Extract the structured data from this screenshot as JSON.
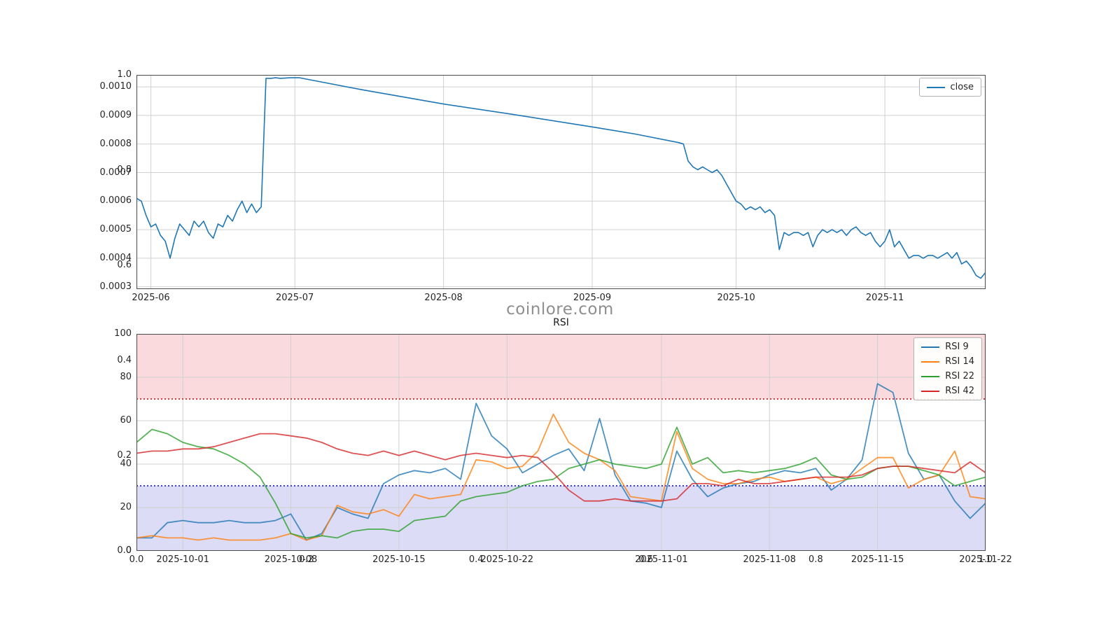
{
  "watermark": "coinlore.com",
  "base_axis": {
    "left_ticks": [
      "1.0",
      "0.8",
      "0.6",
      "0.4",
      "0.2",
      "0.0"
    ],
    "bottom_ticks": [
      "0.0",
      "0.2",
      "0.4",
      "0.6",
      "0.8",
      "1.0"
    ]
  },
  "chart_data": [
    {
      "type": "line",
      "title": "",
      "ylabel": "",
      "xlabel": "",
      "grid": true,
      "legend_position": "upper right",
      "ylim": [
        0.000292,
        0.001042
      ],
      "yticks": [
        {
          "v": 0.0003,
          "label": "0.0003"
        },
        {
          "v": 0.0004,
          "label": "0.0004"
        },
        {
          "v": 0.0005,
          "label": "0.0005"
        },
        {
          "v": 0.0006,
          "label": "0.0006"
        },
        {
          "v": 0.0007,
          "label": "0.0007"
        },
        {
          "v": 0.0008,
          "label": "0.0008"
        },
        {
          "v": 0.0009,
          "label": "0.0009"
        },
        {
          "v": 0.001,
          "label": "0.0010"
        }
      ],
      "xticks": [
        {
          "date": "2025-06-01",
          "label": "2025-06"
        },
        {
          "date": "2025-07-01",
          "label": "2025-07"
        },
        {
          "date": "2025-08-01",
          "label": "2025-08"
        },
        {
          "date": "2025-09-01",
          "label": "2025-09"
        },
        {
          "date": "2025-10-01",
          "label": "2025-10"
        },
        {
          "date": "2025-11-01",
          "label": "2025-11"
        }
      ],
      "series": [
        {
          "name": "close",
          "color": "#1f77b4",
          "opacity": 1,
          "points": [
            [
              "2025-05-29",
              0.00061
            ],
            [
              "2025-05-30",
              0.0006
            ],
            [
              "2025-05-31",
              0.00055
            ],
            [
              "2025-06-01",
              0.00051
            ],
            [
              "2025-06-02",
              0.00052
            ],
            [
              "2025-06-03",
              0.00048
            ],
            [
              "2025-06-04",
              0.00046
            ],
            [
              "2025-06-05",
              0.0004
            ],
            [
              "2025-06-06",
              0.00047
            ],
            [
              "2025-06-07",
              0.00052
            ],
            [
              "2025-06-08",
              0.0005
            ],
            [
              "2025-06-09",
              0.00048
            ],
            [
              "2025-06-10",
              0.00053
            ],
            [
              "2025-06-11",
              0.00051
            ],
            [
              "2025-06-12",
              0.00053
            ],
            [
              "2025-06-13",
              0.00049
            ],
            [
              "2025-06-14",
              0.00047
            ],
            [
              "2025-06-15",
              0.00052
            ],
            [
              "2025-06-16",
              0.00051
            ],
            [
              "2025-06-17",
              0.00055
            ],
            [
              "2025-06-18",
              0.00053
            ],
            [
              "2025-06-19",
              0.00057
            ],
            [
              "2025-06-20",
              0.0006
            ],
            [
              "2025-06-21",
              0.00056
            ],
            [
              "2025-06-22",
              0.00059
            ],
            [
              "2025-06-23",
              0.00056
            ],
            [
              "2025-06-24",
              0.00058
            ],
            [
              "2025-06-25",
              0.00103
            ],
            [
              "2025-06-26",
              0.00103
            ],
            [
              "2025-06-27",
              0.001032
            ],
            [
              "2025-06-28",
              0.00103
            ],
            [
              "2025-06-30",
              0.001032
            ],
            [
              "2025-07-02",
              0.001032
            ],
            [
              "2025-07-15",
              0.00099
            ],
            [
              "2025-08-01",
              0.00094
            ],
            [
              "2025-08-15",
              0.000905
            ],
            [
              "2025-09-01",
              0.00086
            ],
            [
              "2025-09-10",
              0.000835
            ],
            [
              "2025-09-19",
              0.000805
            ],
            [
              "2025-09-20",
              0.0008
            ],
            [
              "2025-09-21",
              0.00074
            ],
            [
              "2025-09-22",
              0.00072
            ],
            [
              "2025-09-23",
              0.00071
            ],
            [
              "2025-09-24",
              0.00072
            ],
            [
              "2025-09-25",
              0.00071
            ],
            [
              "2025-09-26",
              0.0007
            ],
            [
              "2025-09-27",
              0.00071
            ],
            [
              "2025-09-28",
              0.00069
            ],
            [
              "2025-09-29",
              0.00066
            ],
            [
              "2025-09-30",
              0.00063
            ],
            [
              "2025-10-01",
              0.0006
            ],
            [
              "2025-10-02",
              0.00059
            ],
            [
              "2025-10-03",
              0.00057
            ],
            [
              "2025-10-04",
              0.00058
            ],
            [
              "2025-10-05",
              0.00057
            ],
            [
              "2025-10-06",
              0.00058
            ],
            [
              "2025-10-07",
              0.00056
            ],
            [
              "2025-10-08",
              0.00057
            ],
            [
              "2025-10-09",
              0.00055
            ],
            [
              "2025-10-10",
              0.00043
            ],
            [
              "2025-10-11",
              0.00049
            ],
            [
              "2025-10-12",
              0.00048
            ],
            [
              "2025-10-13",
              0.00049
            ],
            [
              "2025-10-14",
              0.00049
            ],
            [
              "2025-10-15",
              0.00048
            ],
            [
              "2025-10-16",
              0.00049
            ],
            [
              "2025-10-17",
              0.00044
            ],
            [
              "2025-10-18",
              0.00048
            ],
            [
              "2025-10-19",
              0.0005
            ],
            [
              "2025-10-20",
              0.00049
            ],
            [
              "2025-10-21",
              0.0005
            ],
            [
              "2025-10-22",
              0.00049
            ],
            [
              "2025-10-23",
              0.0005
            ],
            [
              "2025-10-24",
              0.00048
            ],
            [
              "2025-10-25",
              0.0005
            ],
            [
              "2025-10-26",
              0.00051
            ],
            [
              "2025-10-27",
              0.00049
            ],
            [
              "2025-10-28",
              0.00048
            ],
            [
              "2025-10-29",
              0.00049
            ],
            [
              "2025-10-30",
              0.00046
            ],
            [
              "2025-10-31",
              0.00044
            ],
            [
              "2025-11-01",
              0.00046
            ],
            [
              "2025-11-02",
              0.0005
            ],
            [
              "2025-11-03",
              0.00044
            ],
            [
              "2025-11-04",
              0.00046
            ],
            [
              "2025-11-05",
              0.00043
            ],
            [
              "2025-11-06",
              0.0004
            ],
            [
              "2025-11-07",
              0.00041
            ],
            [
              "2025-11-08",
              0.00041
            ],
            [
              "2025-11-09",
              0.0004
            ],
            [
              "2025-11-10",
              0.00041
            ],
            [
              "2025-11-11",
              0.00041
            ],
            [
              "2025-11-12",
              0.0004
            ],
            [
              "2025-11-13",
              0.00041
            ],
            [
              "2025-11-14",
              0.00042
            ],
            [
              "2025-11-15",
              0.0004
            ],
            [
              "2025-11-16",
              0.00042
            ],
            [
              "2025-11-17",
              0.00038
            ],
            [
              "2025-11-18",
              0.00039
            ],
            [
              "2025-11-19",
              0.00037
            ],
            [
              "2025-11-20",
              0.00034
            ],
            [
              "2025-11-21",
              0.00033
            ],
            [
              "2025-11-22",
              0.00035
            ]
          ]
        }
      ]
    },
    {
      "type": "line",
      "title": "RSI",
      "ylabel": "",
      "xlabel": "",
      "grid": true,
      "legend_position": "upper right",
      "ylim": [
        0,
        100
      ],
      "yticks": [
        {
          "v": 0,
          "label": "0"
        },
        {
          "v": 20,
          "label": "20"
        },
        {
          "v": 40,
          "label": "40"
        },
        {
          "v": 60,
          "label": "60"
        },
        {
          "v": 80,
          "label": "80"
        },
        {
          "v": 100,
          "label": "100"
        }
      ],
      "xticks": [
        {
          "date": "2025-10-01",
          "label": "2025-10-01"
        },
        {
          "date": "2025-10-08",
          "label": "2025-10-08"
        },
        {
          "date": "2025-10-15",
          "label": "2025-10-15"
        },
        {
          "date": "2025-10-22",
          "label": "2025-10-22"
        },
        {
          "date": "2025-11-01",
          "label": "2025-11-01"
        },
        {
          "date": "2025-11-08",
          "label": "2025-11-08"
        },
        {
          "date": "2025-11-15",
          "label": "2025-11-15"
        },
        {
          "date": "2025-11-22",
          "label": "2025-11-22"
        }
      ],
      "bands": [
        {
          "from": 70,
          "to": 100,
          "color": "#fbdade",
          "meaning": "overbought"
        },
        {
          "from": 0,
          "to": 30,
          "color": "#dddcf6",
          "meaning": "oversold"
        }
      ],
      "hlines": [
        {
          "y": 70,
          "color": "#cc0000",
          "style": "dotted"
        },
        {
          "y": 30,
          "color": "#0000cc",
          "style": "dotted"
        }
      ],
      "dates": [
        "2025-09-28",
        "2025-09-29",
        "2025-09-30",
        "2025-10-01",
        "2025-10-02",
        "2025-10-03",
        "2025-10-04",
        "2025-10-05",
        "2025-10-06",
        "2025-10-07",
        "2025-10-08",
        "2025-10-09",
        "2025-10-10",
        "2025-10-11",
        "2025-10-12",
        "2025-10-13",
        "2025-10-14",
        "2025-10-15",
        "2025-10-16",
        "2025-10-17",
        "2025-10-18",
        "2025-10-19",
        "2025-10-20",
        "2025-10-21",
        "2025-10-22",
        "2025-10-23",
        "2025-10-24",
        "2025-10-25",
        "2025-10-26",
        "2025-10-27",
        "2025-10-28",
        "2025-10-29",
        "2025-10-30",
        "2025-10-31",
        "2025-11-01",
        "2025-11-02",
        "2025-11-03",
        "2025-11-04",
        "2025-11-05",
        "2025-11-06",
        "2025-11-07",
        "2025-11-08",
        "2025-11-09",
        "2025-11-10",
        "2025-11-11",
        "2025-11-12",
        "2025-11-13",
        "2025-11-14",
        "2025-11-15",
        "2025-11-16",
        "2025-11-17",
        "2025-11-18",
        "2025-11-19",
        "2025-11-20",
        "2025-11-21",
        "2025-11-22"
      ],
      "series": [
        {
          "name": "RSI 9",
          "color": "#1f77b4",
          "opacity": 0.8,
          "values": [
            6,
            6,
            13,
            14,
            13,
            13,
            14,
            13,
            13,
            14,
            17,
            5,
            8,
            20,
            17,
            15,
            31,
            35,
            37,
            36,
            38,
            33,
            68,
            53,
            47,
            36,
            40,
            44,
            47,
            37,
            61,
            35,
            23,
            22,
            20,
            46,
            33,
            25,
            29,
            31,
            32,
            35,
            37,
            36,
            38,
            28,
            33,
            42,
            77,
            73,
            45,
            33,
            35,
            23,
            15,
            22
          ]
        },
        {
          "name": "RSI 14",
          "color": "#ff7f0e",
          "opacity": 0.8,
          "values": [
            6,
            7,
            6,
            6,
            5,
            6,
            5,
            5,
            5,
            6,
            8,
            5,
            7,
            21,
            18,
            17,
            19,
            16,
            26,
            24,
            25,
            26,
            42,
            41,
            38,
            39,
            46,
            63,
            50,
            45,
            42,
            37,
            25,
            24,
            23,
            55,
            38,
            33,
            31,
            31,
            33,
            34,
            32,
            33,
            34,
            31,
            33,
            38,
            43,
            43,
            29,
            33,
            35,
            46,
            25,
            24
          ]
        },
        {
          "name": "RSI 22",
          "color": "#2ca02c",
          "opacity": 0.8,
          "values": [
            50,
            56,
            54,
            50,
            48,
            47,
            44,
            40,
            34,
            22,
            8,
            6,
            7,
            6,
            9,
            10,
            10,
            9,
            14,
            15,
            16,
            23,
            25,
            26,
            27,
            30,
            32,
            33,
            38,
            40,
            42,
            40,
            39,
            38,
            40,
            57,
            40,
            43,
            36,
            37,
            36,
            37,
            38,
            40,
            43,
            35,
            33,
            34,
            38,
            39,
            39,
            37,
            35,
            30,
            32,
            34
          ]
        },
        {
          "name": "RSI 42",
          "color": "#d62728",
          "opacity": 0.8,
          "values": [
            45,
            46,
            46,
            47,
            47,
            48,
            50,
            52,
            54,
            54,
            53,
            52,
            50,
            47,
            45,
            44,
            46,
            44,
            46,
            44,
            42,
            44,
            45,
            44,
            43,
            44,
            43,
            36,
            28,
            23,
            23,
            24,
            23,
            23,
            23,
            24,
            31,
            31,
            30,
            33,
            31,
            31,
            32,
            33,
            34,
            34,
            34,
            35,
            38,
            39,
            39,
            38,
            37,
            36,
            41,
            36
          ]
        }
      ]
    }
  ]
}
